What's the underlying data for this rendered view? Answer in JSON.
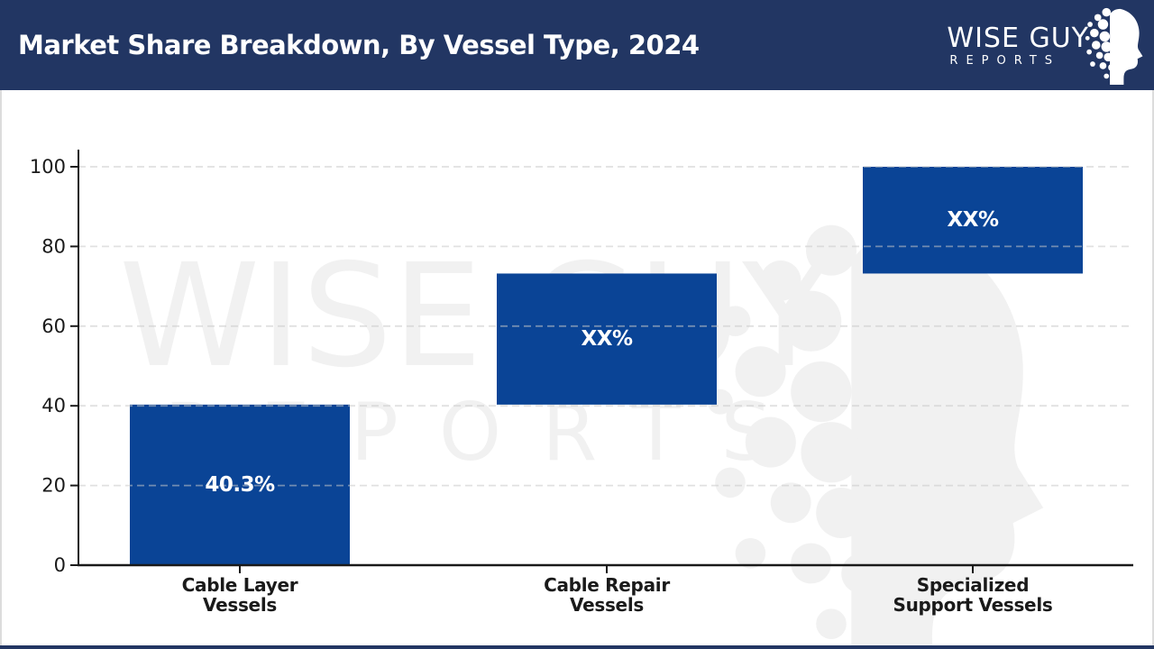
{
  "header": {
    "title": "Market Share Breakdown, By Vessel Type, 2024",
    "logo": {
      "line1": "WISE GUY",
      "line2": "REPORTS"
    }
  },
  "watermark": {
    "line1": "WISE GUY",
    "line2": "REPORTS"
  },
  "chart_data": {
    "type": "bar",
    "subtype": "waterfall",
    "title": "Market Share Breakdown, By Vessel Type, 2024",
    "categories": [
      [
        "Cable Layer",
        "Vessels"
      ],
      [
        "Cable Repair",
        "Vessels"
      ],
      [
        "Specialized",
        "Support Vessels"
      ]
    ],
    "segments": [
      {
        "label": "40.3%",
        "start": 0,
        "end": 40.3
      },
      {
        "label": "XX%",
        "start": 40.3,
        "end": 73.2
      },
      {
        "label": "XX%",
        "start": 73.2,
        "end": 100
      }
    ],
    "yticks": [
      0,
      20,
      40,
      60,
      80,
      100
    ],
    "ylim": [
      0,
      100
    ],
    "grid": true,
    "legend": "none",
    "colors": {
      "bar": "#0a4496",
      "bar_label": "#ffffff",
      "header_bg": "#223663",
      "footer_bg": "#223663",
      "axis": "#1a1a1a",
      "gridline": "#c8c8c8",
      "watermark": "#f1f1f1"
    }
  }
}
